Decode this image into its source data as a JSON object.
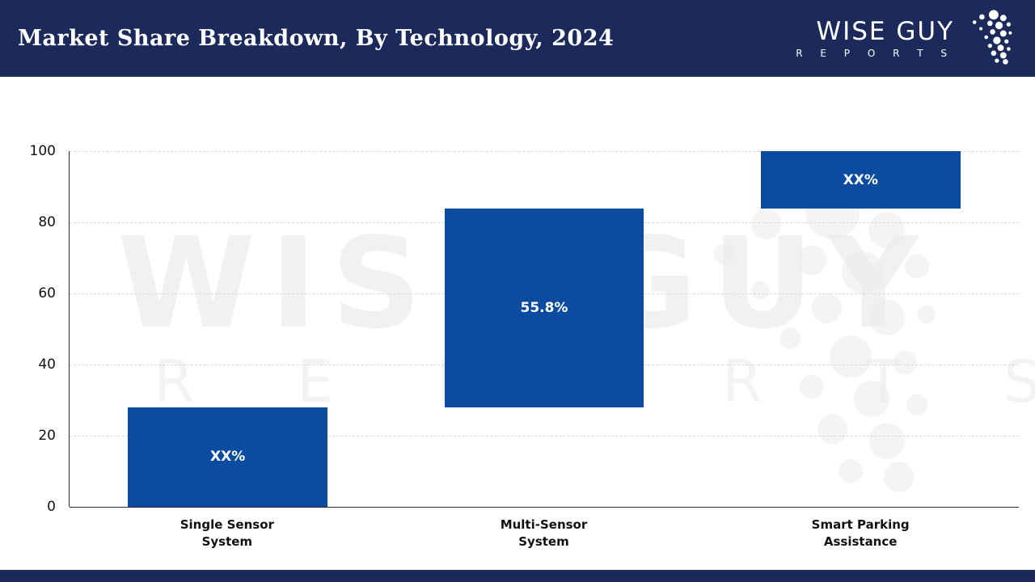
{
  "header": {
    "logo": {
      "line1": "WISE GUY",
      "line2": "R E P O R T S"
    }
  },
  "watermark": {
    "line1": "WISE GUY",
    "line2": "R E P O R T S"
  },
  "chart_data": {
    "type": "bar",
    "subtype": "waterfall-floating-bars",
    "title": "Market Share Breakdown, By Technology, 2024",
    "categories": [
      [
        "Single Sensor",
        "System"
      ],
      [
        "Multi-Sensor",
        "System"
      ],
      [
        "Smart Parking",
        "Assistance"
      ]
    ],
    "segments": [
      {
        "start": 0,
        "end": 28,
        "label": "XX%"
      },
      {
        "start": 28,
        "end": 83.8,
        "label": "55.8%"
      },
      {
        "start": 83.8,
        "end": 100,
        "label": "XX%"
      }
    ],
    "ylim": [
      0,
      100
    ],
    "yticks": [
      0,
      20,
      40,
      60,
      80,
      100
    ],
    "xlabel": "",
    "ylabel": "",
    "grid": "horizontal-dashed",
    "legend": "none",
    "colors": {
      "bar": "#0c4ca0",
      "bar_label": "#ffffff",
      "header_bg": "#1b2a5a",
      "axis_text": "#111111",
      "gridline": "#d9d9d9",
      "watermark": "#f1f1f1"
    }
  }
}
